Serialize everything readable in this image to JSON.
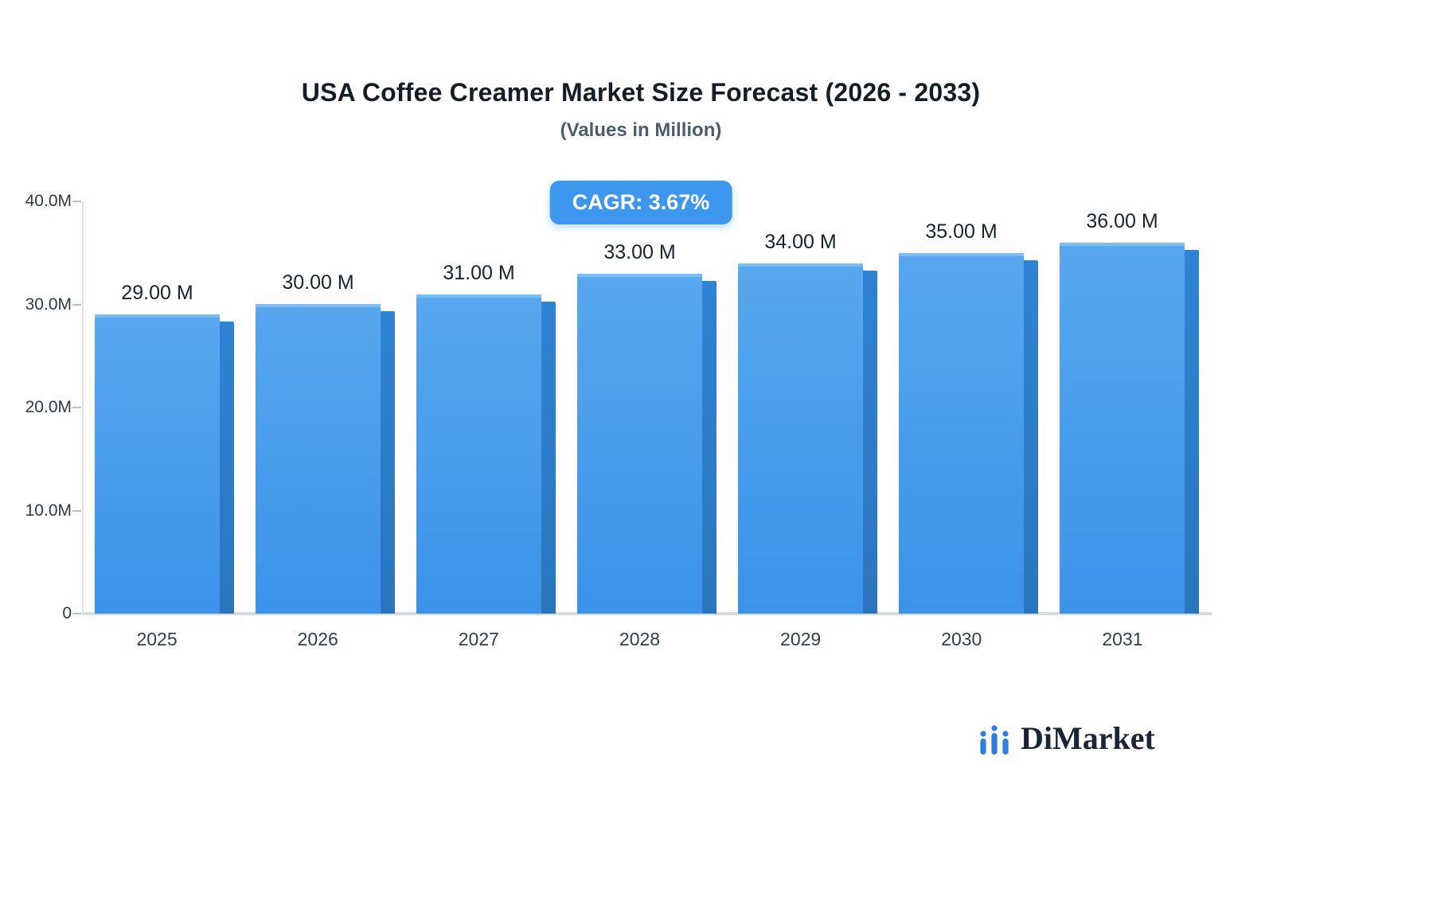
{
  "header": {
    "title": "USA Coffee Creamer Market Size Forecast (2026 - 2033)",
    "subtitle": "(Values in Million)"
  },
  "badge": {
    "label": "CAGR: 3.67%"
  },
  "brand": {
    "name": "DiMarket",
    "icon": "mini-bar-chart-icon"
  },
  "colors": {
    "bar_main_top": "#58a7ef",
    "bar_main_bottom": "#3b92e9",
    "bar_side": "#2c7cc8",
    "badge_background": "#3d97ef",
    "brand_blue": "#2e7fe0",
    "axis_gray": "#d6dbe0"
  },
  "chart_data": {
    "type": "bar",
    "title": "USA Coffee Creamer Market Size Forecast (2026 - 2033)",
    "subtitle": "(Values in Million)",
    "categories": [
      "2025",
      "2026",
      "2027",
      "2028",
      "2029",
      "2030",
      "2031"
    ],
    "values": [
      29,
      30,
      31,
      33,
      34,
      35,
      36
    ],
    "value_labels": [
      "29.00 M",
      "30.00 M",
      "31.00 M",
      "33.00 M",
      "34.00 M",
      "35.00 M",
      "36.00 M"
    ],
    "unit": "Million",
    "xlabel": "",
    "ylabel": "",
    "ylim": [
      0,
      40
    ],
    "yticks": [
      {
        "value": 0,
        "label": "0"
      },
      {
        "value": 10,
        "label": "10.0M"
      },
      {
        "value": 20,
        "label": "20.0M"
      },
      {
        "value": 30,
        "label": "30.0M"
      },
      {
        "value": 40,
        "label": "40.0M"
      }
    ],
    "grid": false,
    "legend": false,
    "annotations": [
      "CAGR: 3.67%"
    ]
  }
}
